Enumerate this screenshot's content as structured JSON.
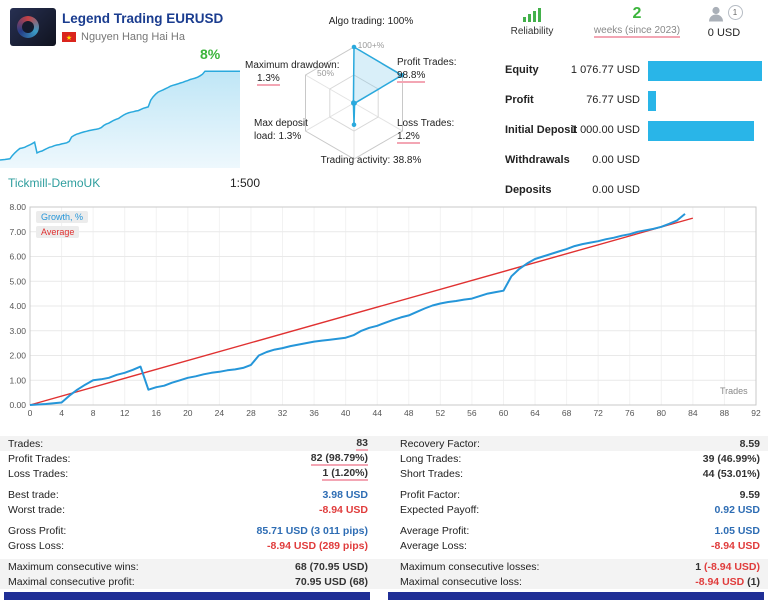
{
  "header": {
    "title": "Legend Trading EURUSD",
    "author": "Nguyen Hang Hai Ha",
    "growth_percent": "8%",
    "broker": "Tickmill-DemoUK",
    "leverage": "1:500"
  },
  "reliability": {
    "label": "Reliability",
    "weeks_value": "2",
    "weeks_caption": "weeks (since 2023)",
    "subscribers": "1",
    "funds": "0 USD"
  },
  "radar": {
    "top": "Algo trading: 100%",
    "ring_outer": "100+%",
    "ring_mid": "50%",
    "right_upper_label": "Profit Trades:",
    "right_upper_value": "98.8%",
    "right_lower_label": "Loss Trades:",
    "right_lower_value": "1.2%",
    "bottom": "Trading activity: 38.8%",
    "left_lower_line1": "Max deposit",
    "left_lower_line2": "load: 1.3%",
    "left_upper_label": "Maximum drawdown:",
    "left_upper_value": "1.3%",
    "values": [
      100,
      98.8,
      1.2,
      38.8,
      1.3,
      1.3
    ]
  },
  "account": {
    "rows": [
      {
        "label": "Equity",
        "value": "1 076.77 USD",
        "bar": 1.0
      },
      {
        "label": "Profit",
        "value": "76.77 USD",
        "bar": 0.071
      },
      {
        "label": "Initial Deposit",
        "value": "1 000.00 USD",
        "bar": 0.929
      },
      {
        "label": "Withdrawals",
        "value": "0.00 USD",
        "bar": 0
      },
      {
        "label": "Deposits",
        "value": "0.00 USD",
        "bar": 0
      }
    ]
  },
  "chart_data": {
    "type": "line",
    "title": "Growth, %",
    "xlabel": "Trades",
    "xlim": [
      0,
      92
    ],
    "ylim": [
      0,
      8
    ],
    "xtick_step": 4,
    "ytick_step": 1,
    "grid": true,
    "legend": [
      "Growth, %",
      "Average"
    ],
    "legend_position": "top-left",
    "series": [
      {
        "name": "Growth, %",
        "color": "#2596d9",
        "points": [
          [
            0,
            0
          ],
          [
            2,
            0.04
          ],
          [
            4,
            0.1
          ],
          [
            5,
            0.38
          ],
          [
            6,
            0.62
          ],
          [
            7,
            0.82
          ],
          [
            8,
            1.0
          ],
          [
            9,
            1.04
          ],
          [
            10,
            1.1
          ],
          [
            11,
            1.22
          ],
          [
            12,
            1.3
          ],
          [
            13,
            1.42
          ],
          [
            14,
            1.55
          ],
          [
            15,
            0.62
          ],
          [
            16,
            0.72
          ],
          [
            17,
            0.78
          ],
          [
            18,
            0.9
          ],
          [
            19,
            1.0
          ],
          [
            20,
            1.1
          ],
          [
            21,
            1.16
          ],
          [
            22,
            1.24
          ],
          [
            23,
            1.3
          ],
          [
            24,
            1.34
          ],
          [
            25,
            1.4
          ],
          [
            26,
            1.44
          ],
          [
            27,
            1.5
          ],
          [
            28,
            1.62
          ],
          [
            29,
            2.0
          ],
          [
            30,
            2.14
          ],
          [
            31,
            2.24
          ],
          [
            32,
            2.3
          ],
          [
            33,
            2.38
          ],
          [
            34,
            2.44
          ],
          [
            35,
            2.5
          ],
          [
            36,
            2.56
          ],
          [
            37,
            2.6
          ],
          [
            38,
            2.64
          ],
          [
            39,
            2.68
          ],
          [
            40,
            2.72
          ],
          [
            41,
            2.82
          ],
          [
            42,
            3.0
          ],
          [
            43,
            3.12
          ],
          [
            44,
            3.2
          ],
          [
            45,
            3.32
          ],
          [
            46,
            3.44
          ],
          [
            47,
            3.54
          ],
          [
            48,
            3.62
          ],
          [
            49,
            3.76
          ],
          [
            50,
            3.9
          ],
          [
            51,
            4.02
          ],
          [
            52,
            4.1
          ],
          [
            53,
            4.16
          ],
          [
            54,
            4.2
          ],
          [
            55,
            4.26
          ],
          [
            56,
            4.3
          ],
          [
            57,
            4.4
          ],
          [
            58,
            4.5
          ],
          [
            59,
            4.56
          ],
          [
            60,
            4.62
          ],
          [
            61,
            5.2
          ],
          [
            62,
            5.5
          ],
          [
            63,
            5.72
          ],
          [
            64,
            5.9
          ],
          [
            65,
            6.0
          ],
          [
            66,
            6.1
          ],
          [
            67,
            6.2
          ],
          [
            68,
            6.3
          ],
          [
            69,
            6.42
          ],
          [
            70,
            6.5
          ],
          [
            71,
            6.56
          ],
          [
            72,
            6.62
          ],
          [
            73,
            6.7
          ],
          [
            74,
            6.76
          ],
          [
            75,
            6.84
          ],
          [
            76,
            6.9
          ],
          [
            77,
            7.0
          ],
          [
            78,
            7.06
          ],
          [
            79,
            7.12
          ],
          [
            80,
            7.2
          ],
          [
            81,
            7.32
          ],
          [
            82,
            7.46
          ],
          [
            83,
            7.72
          ]
        ]
      },
      {
        "name": "Average",
        "color": "#e03131",
        "points": [
          [
            0,
            0
          ],
          [
            84,
            7.55
          ]
        ]
      }
    ],
    "sparkline_final_label": "8%"
  },
  "stats": {
    "rows": [
      {
        "stripe": true,
        "left": {
          "label": "Trades:",
          "underline": true,
          "parts": [
            {
              "t": "83",
              "c": "k"
            }
          ]
        },
        "right": {
          "label": "Recovery Factor:",
          "parts": [
            {
              "t": "8.59",
              "c": "k"
            }
          ]
        }
      },
      {
        "left": {
          "label": "Profit Trades:",
          "underline": true,
          "parts": [
            {
              "t": "82 (98.79%)",
              "c": "k"
            }
          ]
        },
        "right": {
          "label": "Long Trades:",
          "parts": [
            {
              "t": "39 (46.99%)",
              "c": "k"
            }
          ]
        }
      },
      {
        "left": {
          "label": "Loss Trades:",
          "underline": true,
          "parts": [
            {
              "t": "1 (1.20%)",
              "c": "k"
            }
          ]
        },
        "right": {
          "label": "Short Trades:",
          "parts": [
            {
              "t": "44 (53.01%)",
              "c": "k"
            }
          ]
        }
      },
      {
        "gap": true,
        "left": {
          "label": "Best trade:",
          "parts": [
            {
              "t": "3.98 USD",
              "c": "b"
            }
          ]
        },
        "right": {
          "label": "Profit Factor:",
          "parts": [
            {
              "t": "9.59",
              "c": "k"
            }
          ]
        }
      },
      {
        "left": {
          "label": "Worst trade:",
          "parts": [
            {
              "t": "-8.94 USD",
              "c": "r"
            }
          ]
        },
        "right": {
          "label": "Expected Payoff:",
          "parts": [
            {
              "t": "0.92 USD",
              "c": "b"
            }
          ]
        }
      },
      {
        "gap": true,
        "left": {
          "label": "Gross Profit:",
          "parts": [
            {
              "t": "85.71 USD ",
              "c": "b"
            },
            {
              "t": "(3 011 pips)",
              "c": "b"
            }
          ]
        },
        "right": {
          "label": "Average Profit:",
          "parts": [
            {
              "t": "1.05 USD",
              "c": "b"
            }
          ]
        }
      },
      {
        "left": {
          "label": "Gross Loss:",
          "parts": [
            {
              "t": "-8.94 USD ",
              "c": "r"
            },
            {
              "t": "(289 pips)",
              "c": "r"
            }
          ]
        },
        "right": {
          "label": "Average Loss:",
          "parts": [
            {
              "t": "-8.94 USD",
              "c": "r"
            }
          ]
        }
      },
      {
        "gap": true,
        "stripe": true,
        "left": {
          "label": "Maximum consecutive wins:",
          "parts": [
            {
              "t": "68 (70.95 USD)",
              "c": "k"
            }
          ]
        },
        "right": {
          "label": "Maximum consecutive losses:",
          "parts": [
            {
              "t": "1 ",
              "c": "k"
            },
            {
              "t": "(-8.94 USD)",
              "c": "r"
            }
          ]
        }
      },
      {
        "stripe": true,
        "left": {
          "label": "Maximal consecutive profit:",
          "parts": [
            {
              "t": "70.95 USD (68)",
              "c": "k"
            }
          ]
        },
        "right": {
          "label": "Maximal consecutive loss:",
          "parts": [
            {
              "t": "-8.94 USD ",
              "c": "r"
            },
            {
              "t": "(1)",
              "c": "k"
            }
          ]
        }
      }
    ]
  },
  "colors": {
    "accent_bar": "#29b5e8",
    "growth_line": "#2596d9",
    "average_line": "#e03131",
    "radar_line": "#2aa9dd",
    "positive_green": "#3cb53c",
    "negative_red": "#e03c3c",
    "value_blue": "#2e6db4",
    "underline_pink": "#f3a6b4",
    "title_blue": "#1a3c8f",
    "broker_teal": "#2f9e9e"
  }
}
